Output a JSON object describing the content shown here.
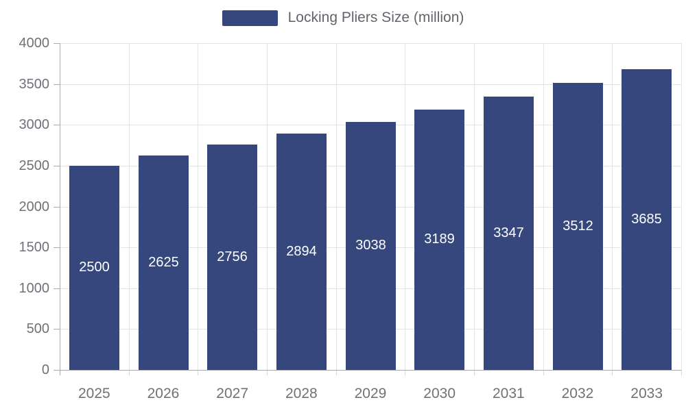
{
  "legend": {
    "label": "Locking Pliers Size (million)"
  },
  "chart_data": {
    "type": "bar",
    "title": "",
    "legend_entries": [
      "Locking Pliers Size (million)"
    ],
    "legend_position": "top-center",
    "categories": [
      "2025",
      "2026",
      "2027",
      "2028",
      "2029",
      "2030",
      "2031",
      "2032",
      "2033"
    ],
    "values": [
      2500,
      2625,
      2756,
      2894,
      3038,
      3189,
      3347,
      3512,
      3685
    ],
    "xlabel": "",
    "ylabel": "",
    "ylim": [
      0,
      4000
    ],
    "ytick_step": 500,
    "yticks": [
      0,
      500,
      1000,
      1500,
      2000,
      2500,
      3000,
      3500,
      4000
    ],
    "grid": true,
    "bar_labels_inside": true,
    "colors": {
      "bar": "#36477E",
      "bar_label": "#FFFFFF",
      "legend_text": "#63636B",
      "axis_label": "#707078",
      "axis_line": "#A6A9B0",
      "grid_line": "#E3E3E8",
      "tick_line": "#D5D8DF",
      "background": "#FFFFFF"
    }
  }
}
